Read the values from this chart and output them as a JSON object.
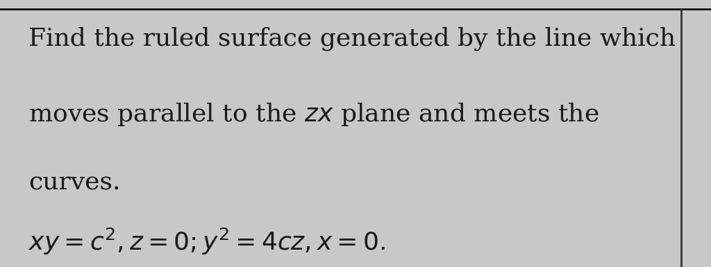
{
  "background_color": "#c8c8c8",
  "paper_color": "#e8e8e6",
  "text_color": "#1a1a1a",
  "border_color": "#222222",
  "right_line_color": "#333333",
  "top_line_color": "#111111",
  "line1": "Find the ruled surface generated by the line which",
  "line2_part1": "moves parallel to the ",
  "line2_italic": "zx",
  "line2_part2": " plane and meets the",
  "line3": "curves.",
  "formula": "$xy = c^2, z = 0; y^2 = 4cz, x = 0.$",
  "font_size_text": 26,
  "font_size_formula": 26,
  "figwidth": 10.24,
  "figheight": 3.85
}
